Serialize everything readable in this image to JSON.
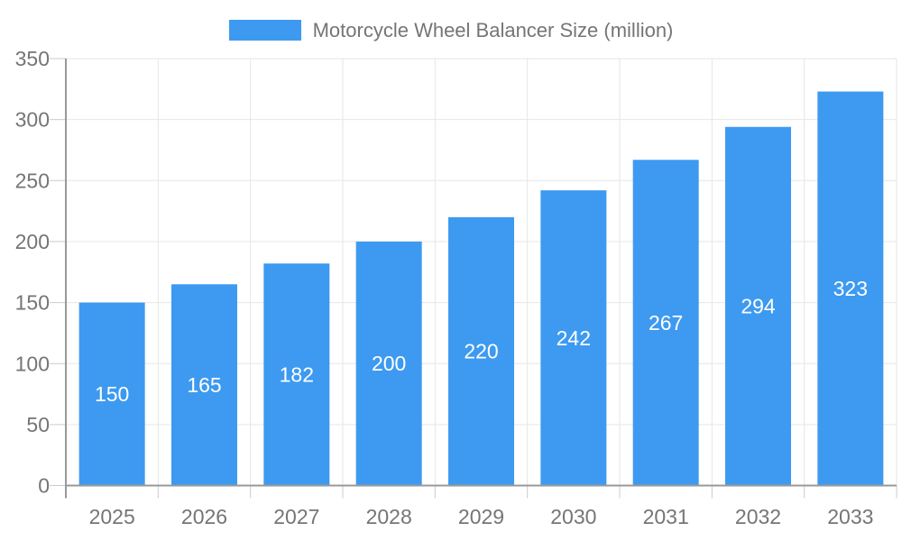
{
  "legend": {
    "label": "Motorcycle Wheel Balancer Size (million)"
  },
  "chart_data": {
    "type": "bar",
    "title": "Motorcycle Wheel Balancer Size (million)",
    "series_name": "Motorcycle Wheel Balancer Size (million)",
    "categories": [
      "2025",
      "2026",
      "2027",
      "2028",
      "2029",
      "2030",
      "2031",
      "2032",
      "2033"
    ],
    "values": [
      150,
      165,
      182,
      200,
      220,
      242,
      267,
      294,
      323
    ],
    "bar_labels": [
      150,
      165,
      182,
      200,
      220,
      242,
      267,
      294,
      323
    ],
    "xlabel": "",
    "ylabel": "",
    "ylim": [
      0,
      350
    ],
    "ytick_step": 50,
    "y_ticks": [
      0,
      50,
      100,
      150,
      200,
      250,
      300,
      350
    ],
    "grid": true,
    "legend_position": "top"
  },
  "colors": {
    "bar": "#3D9AF0",
    "axis_text": "#757575",
    "bar_label_text": "#FFFFFF",
    "gridline": "#E6E6E6",
    "tick": "#CCCCCC",
    "axis_line": "#999999",
    "background": "#FFFFFF"
  }
}
